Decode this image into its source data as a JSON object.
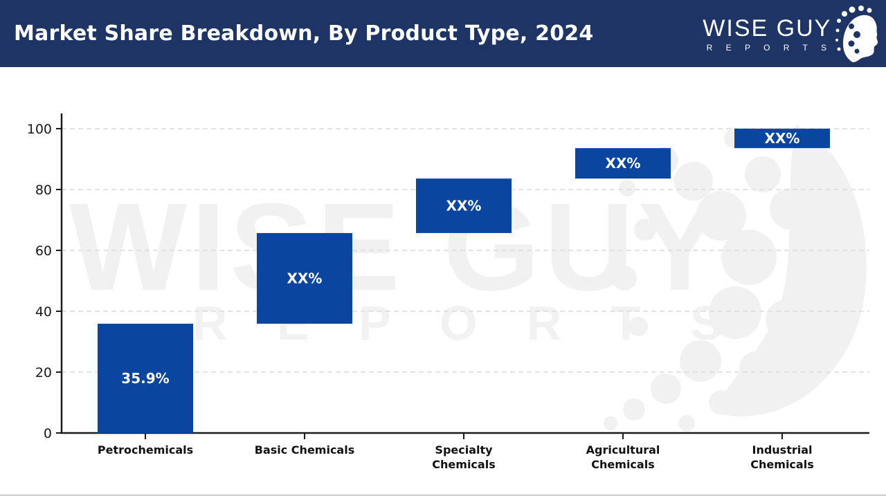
{
  "header": {
    "title": "Market Share Breakdown, By Product Type, 2024",
    "logo": {
      "wordmark": "WISE GUY",
      "subtext": "R E P O R T S"
    }
  },
  "watermark": {
    "line1": "WISE GUY",
    "line2": "R E P O R T S"
  },
  "chart_data": {
    "type": "bar",
    "subtype": "waterfall",
    "title": "Market Share Breakdown, By Product Type, 2024",
    "categories": [
      "Petrochemicals",
      "Basic Chemicals",
      "Specialty\nChemicals",
      "Agricultural\nChemicals",
      "Industrial\nChemicals"
    ],
    "segments": [
      {
        "category": "Petrochemicals",
        "start": 0,
        "end": 35.9,
        "value": 35.9,
        "label": "35.9%"
      },
      {
        "category": "Basic Chemicals",
        "start": 35.9,
        "end": 65.7,
        "value": 29.8,
        "label": "XX%"
      },
      {
        "category": "Specialty Chemicals",
        "start": 65.7,
        "end": 83.6,
        "value": 17.9,
        "label": "XX%"
      },
      {
        "category": "Agricultural Chemicals",
        "start": 83.6,
        "end": 93.6,
        "value": 10.0,
        "label": "XX%"
      },
      {
        "category": "Industrial Chemicals",
        "start": 93.6,
        "end": 100.0,
        "value": 6.4,
        "label": "XX%"
      }
    ],
    "y_ticks": [
      0,
      20,
      40,
      60,
      80,
      100
    ],
    "ylim": [
      0,
      105
    ],
    "xlabel": "",
    "ylabel": "",
    "grid": "dashed-horizontal",
    "legend": "none",
    "bar_color": "#0a46a0",
    "bar_label_color": "#ffffff"
  },
  "colors": {
    "header_bg": "#1e3464",
    "bar": "#0a46a0",
    "grid": "#dcdcdc",
    "axis": "#1a1a1a",
    "text": "#111111",
    "watermark": "#f1f1f2"
  }
}
